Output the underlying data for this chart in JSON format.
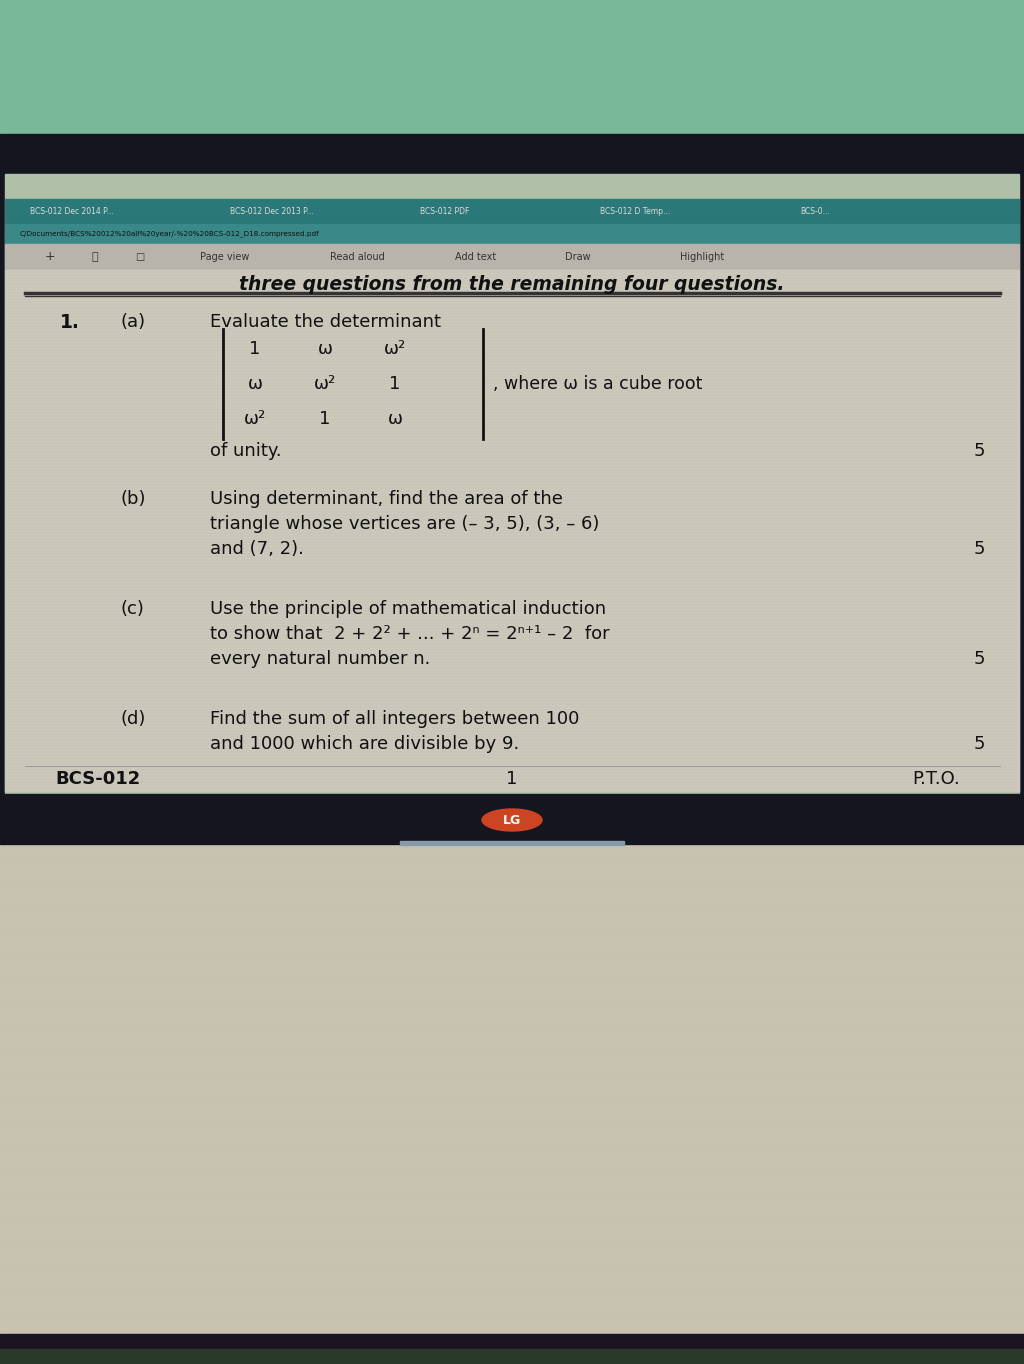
{
  "green_wall_color": "#7ab89a",
  "pink_device_color": "#c06080",
  "monitor_outer_color": "#151520",
  "monitor_inner_bezel": "#1a1a28",
  "screen_bg": "#b8c8b0",
  "tab_bar_color": "#2a7878",
  "addr_bar_color": "#3a8888",
  "toolbar_color": "#b5b0a8",
  "paper_color": "#ccc8bc",
  "paper_line_color": "#555555",
  "text_color": "#111111",
  "footer_area_color": "#c8c4b8",
  "bottom_bezel_color": "#1a1828",
  "lg_oval_color": "#cc4422",
  "desk_color": "#223322",
  "scan_line_color": "#000000",
  "header_text": "three questions from the remaining four questions.",
  "addr_text": "C/Documents/BCS%20012%20all%20year/-%20%20BCS-012_D18.compressed.pdf",
  "tab_texts": [
    "BCS-012 Dec 2014 P...",
    "BCS-012 Dec 2013 P...",
    "BCS-012 PDF",
    "BCS-012 D Temp...",
    "BCS-0..."
  ],
  "toolbar_items": [
    "Page view",
    "Read aloud",
    "Add text",
    "Draw",
    "Highlight"
  ],
  "footer_left": "BCS-012",
  "footer_center": "1",
  "footer_right": "P.T.O.",
  "q1_number": "1.",
  "q1_sub": "(a)",
  "q1_intro": "Evaluate the determinant",
  "matrix_rows": [
    [
      "1",
      "ω",
      "ω²"
    ],
    [
      "ω",
      "ω²",
      "1"
    ],
    [
      "ω²",
      "1",
      "ω"
    ]
  ],
  "matrix_note": ", where ω is a cube root",
  "after_matrix": "of unity.",
  "q1_marks": "5",
  "qb_sub": "(b)",
  "qb_lines": [
    "Using determinant, find the area of the",
    "triangle whose vertices are (– 3, 5), (3, – 6)",
    "and (7, 2)."
  ],
  "qb_marks": "5",
  "qc_sub": "(c)",
  "qc_lines": [
    "Use the principle of mathematical induction",
    "to show that  2 + 2² + ... + 2ⁿ = 2ⁿ⁺¹ – 2  for",
    "every natural number n."
  ],
  "qc_marks": "5",
  "qd_sub": "(d)",
  "qd_lines": [
    "Find the sum of all integers between 100",
    "and 1000 which are divisible by 9."
  ],
  "qd_marks": "5"
}
